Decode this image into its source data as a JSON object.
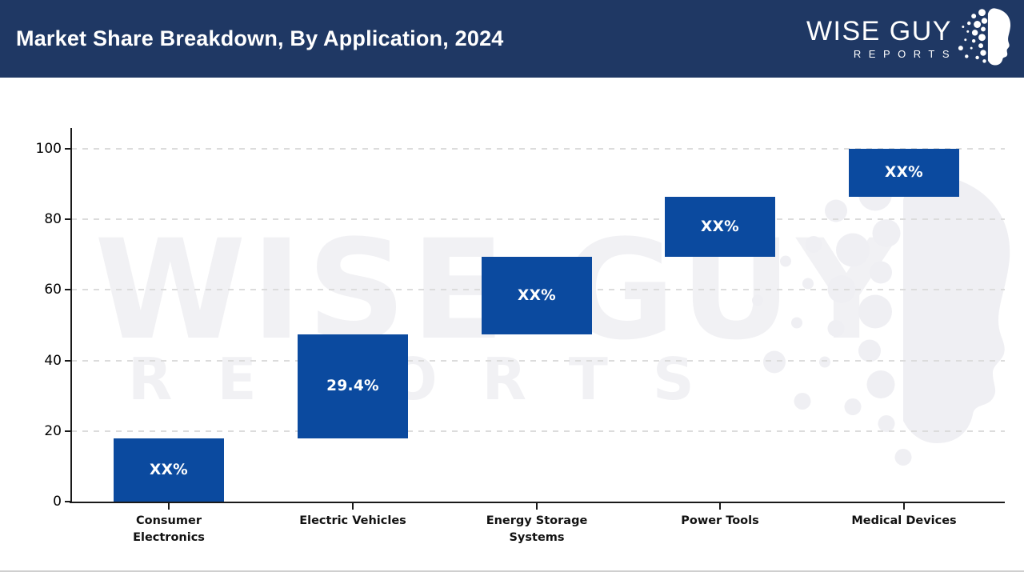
{
  "header": {
    "title": "Market Share Breakdown, By Application, 2024",
    "bg_color": "#1f3864",
    "logo": {
      "line1": "WISE GUY",
      "line2": "REPORTS"
    }
  },
  "watermark": {
    "line1": "WISE GUY",
    "line2": "REPORTS"
  },
  "chart_data": {
    "type": "bar",
    "subtype": "waterfall-floating-bars",
    "title": "Market Share Breakdown, By Application, 2024",
    "xlabel": "",
    "ylabel": "",
    "categories": [
      "Consumer Electronics",
      "Electric Vehicles",
      "Energy Storage Systems",
      "Power Tools",
      "Medical Devices"
    ],
    "category_label_lines": [
      [
        "Consumer",
        "Electronics"
      ],
      [
        "Electric Vehicles"
      ],
      [
        "Energy Storage",
        "Systems"
      ],
      [
        "Power Tools"
      ],
      [
        "Medical Devices"
      ]
    ],
    "series": [
      {
        "name": "Market Share (%)",
        "segments": [
          [
            0,
            18
          ],
          [
            18,
            47.4
          ],
          [
            47.4,
            69.3
          ],
          [
            69.3,
            86.5
          ],
          [
            86.5,
            100
          ]
        ],
        "heights": [
          18,
          29.4,
          21.9,
          17.2,
          13.5
        ]
      }
    ],
    "bar_labels": [
      "XX%",
      "29.4%",
      "XX%",
      "XX%",
      "XX%"
    ],
    "ylim": [
      0,
      106
    ],
    "yticks": [
      0,
      20,
      40,
      60,
      80,
      100
    ],
    "grid": "horizontal-dashed",
    "legend": "none",
    "bar_color": "#0b4a9f",
    "bar_label_color": "#ffffff",
    "axis_color": "#1a1a1a"
  }
}
